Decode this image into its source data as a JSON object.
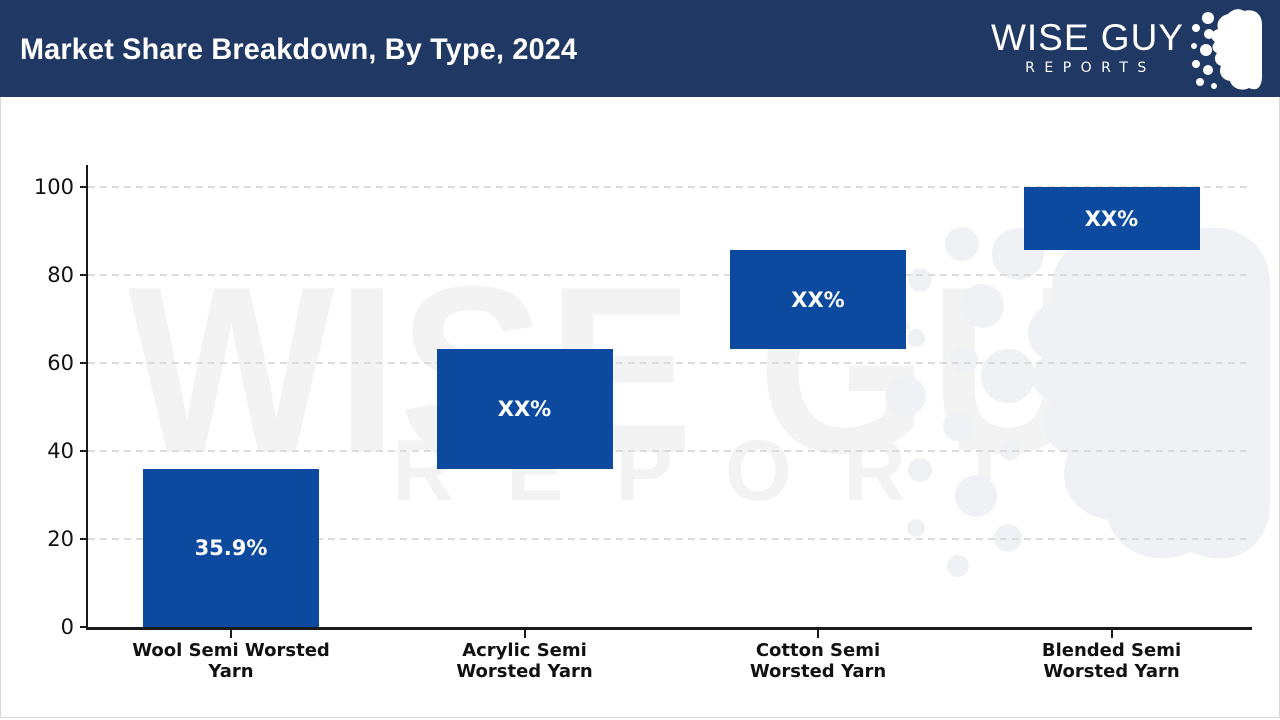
{
  "header": {
    "title": "Market Share Breakdown, By Type, 2024",
    "bg_color": "#203864"
  },
  "logo": {
    "line1": "WISE GUY",
    "line2": "REPORTS"
  },
  "watermark": {
    "line1": "WISE GUY",
    "line2": "REPORTS"
  },
  "chart_data": {
    "type": "bar",
    "subtype": "waterfall",
    "title": "Market Share Breakdown, By Type, 2024",
    "categories": [
      "Wool Semi Worsted Yarn",
      "Acrylic Semi Worsted Yarn",
      "Cotton Semi Worsted Yarn",
      "Blended Semi Worsted Yarn"
    ],
    "category_lines": [
      [
        "Wool Semi Worsted",
        "Yarn"
      ],
      [
        "Acrylic Semi",
        "Worsted Yarn"
      ],
      [
        "Cotton Semi",
        "Worsted Yarn"
      ],
      [
        "Blended Semi",
        "Worsted Yarn"
      ]
    ],
    "segments": [
      {
        "category": "Wool Semi Worsted Yarn",
        "start": 0,
        "end": 35.9,
        "label": "35.9%"
      },
      {
        "category": "Acrylic Semi Worsted Yarn",
        "start": 35.9,
        "end": 63.2,
        "label": "XX%"
      },
      {
        "category": "Cotton Semi Worsted Yarn",
        "start": 63.2,
        "end": 85.6,
        "label": "XX%"
      },
      {
        "category": "Blended Semi Worsted Yarn",
        "start": 85.6,
        "end": 100,
        "label": "XX%"
      }
    ],
    "yticks": [
      0,
      20,
      40,
      60,
      80,
      100
    ],
    "ylim": [
      0,
      100
    ],
    "xlabel": "",
    "ylabel": "",
    "bar_color": "#0b4a9e",
    "label_color": "#ffffff",
    "grid": "horizontal-dashed",
    "legend": "none"
  }
}
